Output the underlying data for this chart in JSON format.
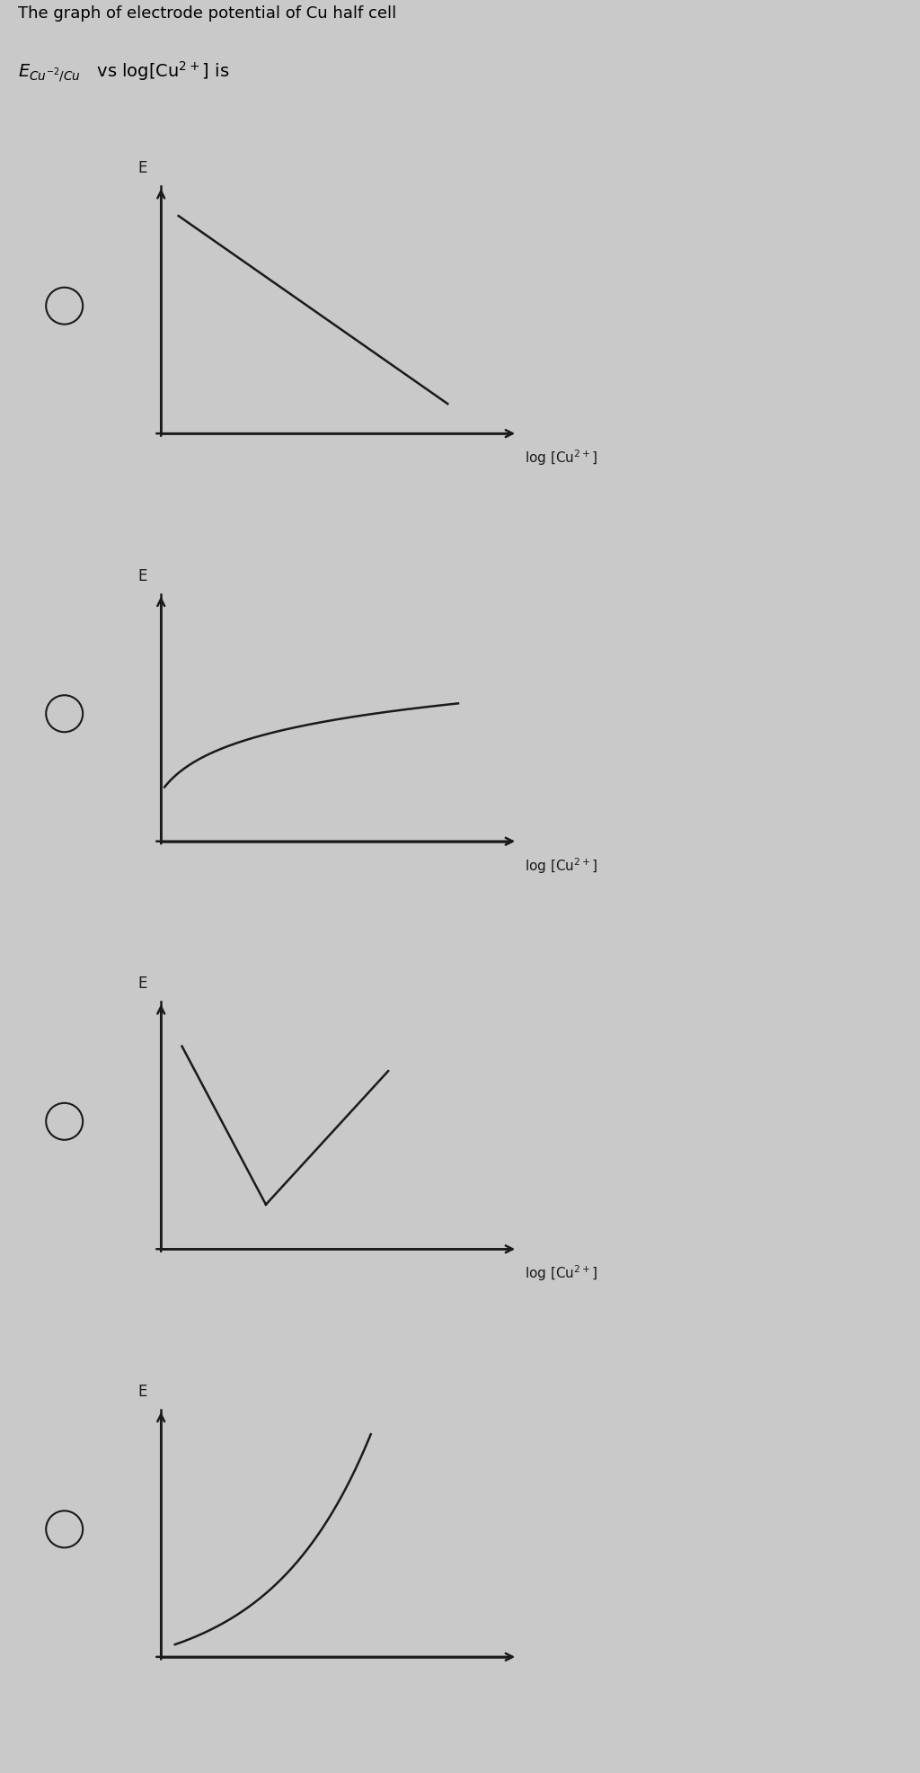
{
  "background_color": "#c9c9c9",
  "title_line1": "The graph of electrode potential of Cu half cell",
  "line_color": "#1a1a1a",
  "title_fontsize": 13,
  "axis_label_fontsize": 12,
  "xlabel_fontsize": 11,
  "line_width": 1.8,
  "axis_linewidth": 1.8,
  "radio_linewidth": 1.5,
  "panels": [
    {
      "type": "linear_decreasing"
    },
    {
      "type": "log_flatten"
    },
    {
      "type": "v_shape"
    },
    {
      "type": "curve_up"
    }
  ]
}
